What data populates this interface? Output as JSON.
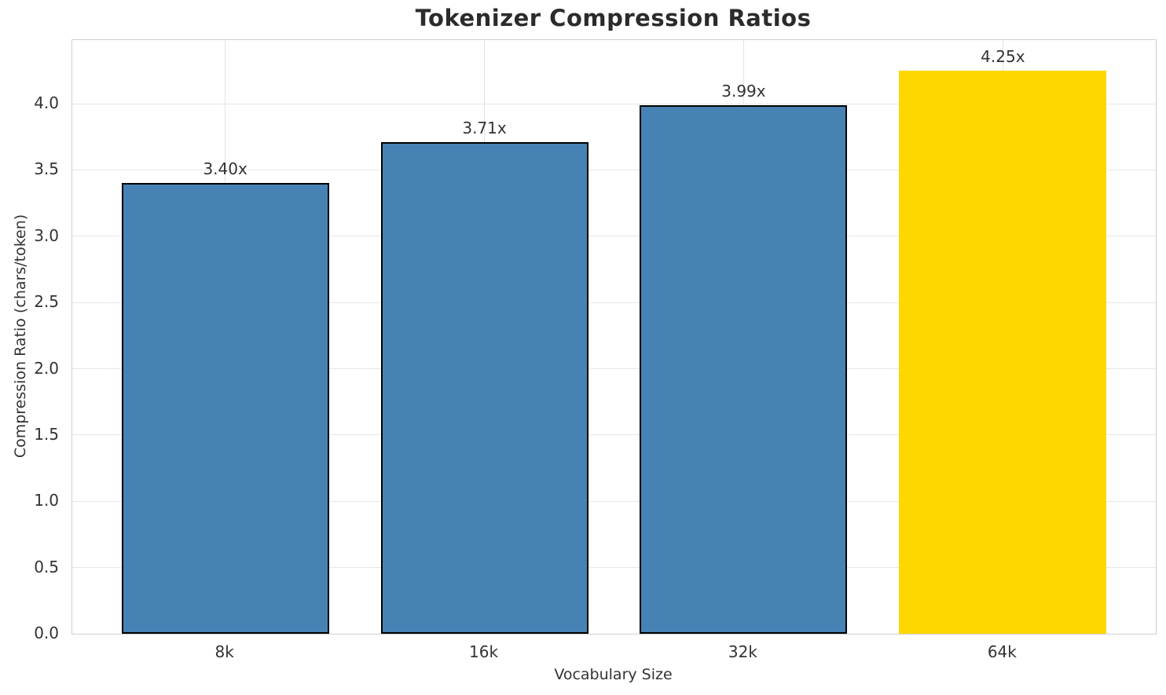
{
  "chart_data": {
    "type": "bar",
    "title": "Tokenizer Compression Ratios",
    "xlabel": "Vocabulary Size",
    "ylabel": "Compression Ratio (chars/token)",
    "categories": [
      "8k",
      "16k",
      "32k",
      "64k"
    ],
    "values": [
      3.4,
      3.71,
      3.99,
      4.25
    ],
    "bar_labels": [
      "3.40x",
      "3.71x",
      "3.99x",
      "4.25x"
    ],
    "bar_colors": [
      "#4682B4",
      "#4682B4",
      "#4682B4",
      "#FFD700"
    ],
    "bar_edge_colors": [
      "#000000",
      "#000000",
      "#000000",
      "#FFD700"
    ],
    "bar_edge_width": 2,
    "bar_width": 0.8,
    "xlim": [
      -0.59,
      3.59
    ],
    "ylim": [
      0,
      4.48
    ],
    "yticks": [
      0.0,
      0.5,
      1.0,
      1.5,
      2.0,
      2.5,
      3.0,
      3.5,
      4.0
    ],
    "ytick_labels": [
      "0.0",
      "0.5",
      "1.0",
      "1.5",
      "2.0",
      "2.5",
      "3.0",
      "3.5",
      "4.0"
    ],
    "grid": true,
    "grid_color": "#e6e6e6",
    "spine_color": "#d0d0d0",
    "text_color": "#333333",
    "title_color": "#2b2b2b",
    "legend": "none"
  }
}
